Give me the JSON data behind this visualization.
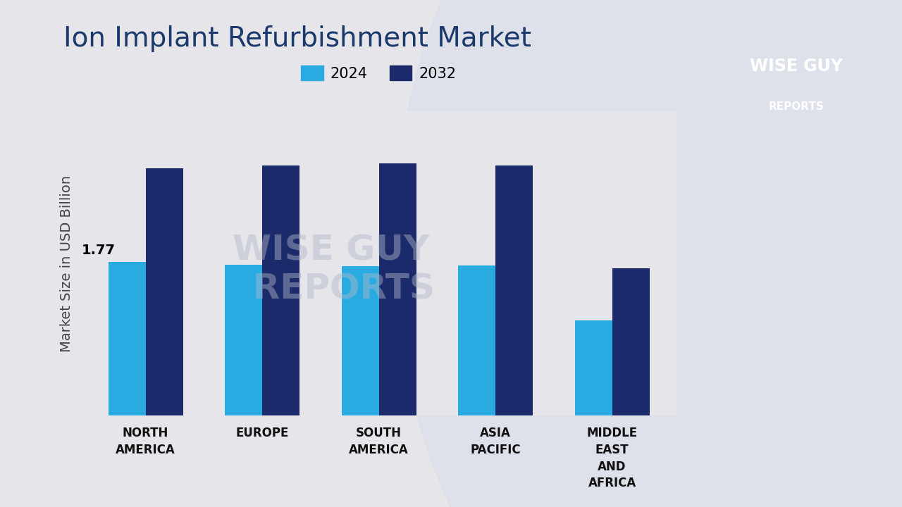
{
  "title": "Ion Implant Refurbishment Market",
  "ylabel": "Market Size in USD Billion",
  "categories": [
    "NORTH\nAMERICA",
    "EUROPE",
    "SOUTH\nAMERICA",
    "ASIA\nPACIFIC",
    "MIDDLE\nEAST\nAND\nAFRICA"
  ],
  "values_2024": [
    1.77,
    1.74,
    1.72,
    1.73,
    1.1
  ],
  "values_2032": [
    2.85,
    2.88,
    2.9,
    2.88,
    1.7
  ],
  "annotation_text": "1.77",
  "annotation_region_idx": 0,
  "color_2024": "#29ABE2",
  "color_2032": "#1B2A6B",
  "background_color": "#E5E5EA",
  "title_color": "#1B3A6B",
  "ylabel_color": "#444444",
  "legend_labels": [
    "2024",
    "2032"
  ],
  "title_fontsize": 28,
  "ylabel_fontsize": 14,
  "tick_fontsize": 12,
  "annotation_fontsize": 14,
  "bar_width": 0.32,
  "ylim": [
    0,
    3.5
  ],
  "right_panel_color": "#1B2A6B"
}
